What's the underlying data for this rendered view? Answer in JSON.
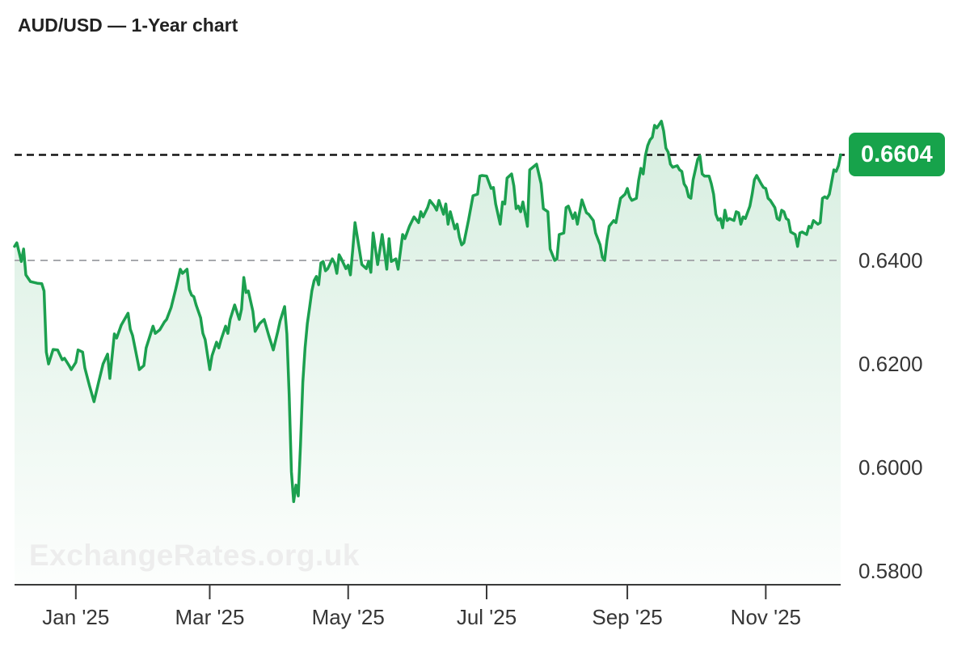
{
  "title": "AUD/USD — 1-Year chart",
  "watermark": "ExchangeRates.org.uk",
  "badge": {
    "value": "0.6604"
  },
  "colors": {
    "line_green": "#1ca04f",
    "badge_green": "#17a34b",
    "fill_green_top": "rgba(28,160,79,0.18)",
    "fill_green_bottom": "rgba(28,160,79,0)",
    "current_dash": "#141414",
    "reference_dash": "#a7a9ad",
    "axis": "#3a3a3a",
    "label_text": "#363636",
    "watermark_text": "#ededed"
  },
  "chart_data": {
    "type": "line",
    "title": "AUD/USD — 1-Year chart",
    "pair": "AUD/USD",
    "period": "1-Year",
    "current_rate": 0.6604,
    "reference_line": 0.64,
    "ylim": [
      0.578,
      0.668
    ],
    "x_range_days": 364,
    "grid": "off",
    "legend": "none",
    "y_ticks": [
      {
        "value": 0.64,
        "label": "0.6400"
      },
      {
        "value": 0.62,
        "label": "0.6200"
      },
      {
        "value": 0.6,
        "label": "0.6000"
      },
      {
        "value": 0.58,
        "label": "0.5800"
      }
    ],
    "x_ticks": [
      {
        "label": "Jan '25",
        "day": 27
      },
      {
        "label": "Mar '25",
        "day": 86
      },
      {
        "label": "May '25",
        "day": 147
      },
      {
        "label": "Jul '25",
        "day": 208
      },
      {
        "label": "Sep '25",
        "day": 270
      },
      {
        "label": "Nov '25",
        "day": 331
      }
    ],
    "points": [
      [
        0,
        0.6427
      ],
      [
        1,
        0.6434
      ],
      [
        3,
        0.6398
      ],
      [
        4,
        0.6422
      ],
      [
        5,
        0.6372
      ],
      [
        7,
        0.6359
      ],
      [
        10,
        0.6356
      ],
      [
        12,
        0.6355
      ],
      [
        13,
        0.6341
      ],
      [
        14,
        0.6223
      ],
      [
        15,
        0.62
      ],
      [
        17,
        0.6228
      ],
      [
        19,
        0.6227
      ],
      [
        21,
        0.6208
      ],
      [
        22,
        0.6211
      ],
      [
        24,
        0.6197
      ],
      [
        25,
        0.6189
      ],
      [
        27,
        0.6203
      ],
      [
        28,
        0.6227
      ],
      [
        30,
        0.6223
      ],
      [
        31,
        0.6192
      ],
      [
        33,
        0.6158
      ],
      [
        35,
        0.6127
      ],
      [
        37,
        0.6164
      ],
      [
        39,
        0.62
      ],
      [
        41,
        0.6219
      ],
      [
        42,
        0.6172
      ],
      [
        44,
        0.6258
      ],
      [
        45,
        0.625
      ],
      [
        47,
        0.6275
      ],
      [
        50,
        0.6298
      ],
      [
        51,
        0.6267
      ],
      [
        52,
        0.6255
      ],
      [
        55,
        0.6189
      ],
      [
        57,
        0.6197
      ],
      [
        58,
        0.6231
      ],
      [
        61,
        0.6273
      ],
      [
        62,
        0.6259
      ],
      [
        64,
        0.6266
      ],
      [
        66,
        0.6281
      ],
      [
        67,
        0.6286
      ],
      [
        69,
        0.6309
      ],
      [
        71,
        0.6344
      ],
      [
        73,
        0.6383
      ],
      [
        74,
        0.6375
      ],
      [
        76,
        0.6383
      ],
      [
        77,
        0.6344
      ],
      [
        78,
        0.6333
      ],
      [
        79,
        0.633
      ],
      [
        80,
        0.6314
      ],
      [
        82,
        0.6289
      ],
      [
        83,
        0.6259
      ],
      [
        84,
        0.6247
      ],
      [
        86,
        0.6189
      ],
      [
        87,
        0.6216
      ],
      [
        89,
        0.6242
      ],
      [
        90,
        0.6231
      ],
      [
        91,
        0.6247
      ],
      [
        93,
        0.6273
      ],
      [
        94,
        0.6259
      ],
      [
        95,
        0.6286
      ],
      [
        97,
        0.6314
      ],
      [
        99,
        0.6286
      ],
      [
        100,
        0.6306
      ],
      [
        101,
        0.6367
      ],
      [
        102,
        0.6338
      ],
      [
        103,
        0.6341
      ],
      [
        105,
        0.6302
      ],
      [
        106,
        0.6263
      ],
      [
        108,
        0.6278
      ],
      [
        110,
        0.6286
      ],
      [
        112,
        0.6255
      ],
      [
        114,
        0.6227
      ],
      [
        116,
        0.6263
      ],
      [
        117,
        0.6283
      ],
      [
        119,
        0.6311
      ],
      [
        120,
        0.6258
      ],
      [
        121,
        0.6142
      ],
      [
        122,
        0.5992
      ],
      [
        123,
        0.5934
      ],
      [
        124,
        0.5966
      ],
      [
        125,
        0.5945
      ],
      [
        126,
        0.6045
      ],
      [
        127,
        0.6164
      ],
      [
        128,
        0.6231
      ],
      [
        129,
        0.6278
      ],
      [
        130,
        0.6309
      ],
      [
        131,
        0.6341
      ],
      [
        132,
        0.6361
      ],
      [
        133,
        0.6369
      ],
      [
        134,
        0.6353
      ],
      [
        135,
        0.6395
      ],
      [
        136,
        0.6398
      ],
      [
        137,
        0.638
      ],
      [
        138,
        0.6384
      ],
      [
        140,
        0.6403
      ],
      [
        141,
        0.6395
      ],
      [
        142,
        0.6375
      ],
      [
        143,
        0.6411
      ],
      [
        144,
        0.6403
      ],
      [
        146,
        0.6384
      ],
      [
        147,
        0.6391
      ],
      [
        148,
        0.6372
      ],
      [
        149,
        0.6419
      ],
      [
        150,
        0.6473
      ],
      [
        153,
        0.6392
      ],
      [
        155,
        0.6384
      ],
      [
        156,
        0.6398
      ],
      [
        157,
        0.6377
      ],
      [
        158,
        0.6453
      ],
      [
        160,
        0.6392
      ],
      [
        162,
        0.645
      ],
      [
        164,
        0.6383
      ],
      [
        165,
        0.6442
      ],
      [
        166,
        0.6398
      ],
      [
        168,
        0.6403
      ],
      [
        169,
        0.6383
      ],
      [
        171,
        0.645
      ],
      [
        172,
        0.6442
      ],
      [
        174,
        0.6466
      ],
      [
        176,
        0.6484
      ],
      [
        178,
        0.6473
      ],
      [
        179,
        0.6494
      ],
      [
        180,
        0.6484
      ],
      [
        182,
        0.6502
      ],
      [
        183,
        0.6516
      ],
      [
        185,
        0.6505
      ],
      [
        186,
        0.6497
      ],
      [
        187,
        0.6516
      ],
      [
        189,
        0.6489
      ],
      [
        190,
        0.6509
      ],
      [
        191,
        0.647
      ],
      [
        192,
        0.6494
      ],
      [
        194,
        0.6461
      ],
      [
        195,
        0.647
      ],
      [
        196,
        0.6445
      ],
      [
        197,
        0.643
      ],
      [
        198,
        0.6434
      ],
      [
        200,
        0.6477
      ],
      [
        202,
        0.6525
      ],
      [
        204,
        0.6528
      ],
      [
        205,
        0.6563
      ],
      [
        206,
        0.6564
      ],
      [
        208,
        0.6563
      ],
      [
        210,
        0.6539
      ],
      [
        211,
        0.6541
      ],
      [
        212,
        0.6509
      ],
      [
        214,
        0.647
      ],
      [
        215,
        0.6513
      ],
      [
        216,
        0.6509
      ],
      [
        217,
        0.6559
      ],
      [
        219,
        0.6567
      ],
      [
        220,
        0.6544
      ],
      [
        221,
        0.65
      ],
      [
        222,
        0.6505
      ],
      [
        223,
        0.6494
      ],
      [
        224,
        0.6513
      ],
      [
        226,
        0.6466
      ],
      [
        227,
        0.6575
      ],
      [
        230,
        0.6586
      ],
      [
        232,
        0.6548
      ],
      [
        233,
        0.65
      ],
      [
        235,
        0.6494
      ],
      [
        236,
        0.6422
      ],
      [
        238,
        0.64
      ],
      [
        239,
        0.6403
      ],
      [
        240,
        0.645
      ],
      [
        242,
        0.6453
      ],
      [
        243,
        0.6502
      ],
      [
        244,
        0.6505
      ],
      [
        246,
        0.6481
      ],
      [
        247,
        0.6492
      ],
      [
        248,
        0.647
      ],
      [
        250,
        0.6517
      ],
      [
        252,
        0.6492
      ],
      [
        253,
        0.6489
      ],
      [
        255,
        0.6477
      ],
      [
        256,
        0.6453
      ],
      [
        258,
        0.643
      ],
      [
        259,
        0.6406
      ],
      [
        260,
        0.64
      ],
      [
        261,
        0.6438
      ],
      [
        262,
        0.6466
      ],
      [
        264,
        0.6477
      ],
      [
        265,
        0.6473
      ],
      [
        266,
        0.6497
      ],
      [
        267,
        0.652
      ],
      [
        269,
        0.6528
      ],
      [
        270,
        0.6539
      ],
      [
        271,
        0.6523
      ],
      [
        272,
        0.6516
      ],
      [
        274,
        0.652
      ],
      [
        275,
        0.6555
      ],
      [
        276,
        0.6578
      ],
      [
        277,
        0.6567
      ],
      [
        278,
        0.6603
      ],
      [
        279,
        0.6622
      ],
      [
        280,
        0.6633
      ],
      [
        281,
        0.6638
      ],
      [
        282,
        0.6661
      ],
      [
        283,
        0.6656
      ],
      [
        285,
        0.6669
      ],
      [
        286,
        0.665
      ],
      [
        287,
        0.6617
      ],
      [
        288,
        0.6609
      ],
      [
        289,
        0.6586
      ],
      [
        290,
        0.658
      ],
      [
        292,
        0.6583
      ],
      [
        293,
        0.6575
      ],
      [
        294,
        0.6572
      ],
      [
        295,
        0.6548
      ],
      [
        296,
        0.6541
      ],
      [
        297,
        0.6523
      ],
      [
        298,
        0.652
      ],
      [
        299,
        0.6556
      ],
      [
        301,
        0.6595
      ],
      [
        302,
        0.6602
      ],
      [
        303,
        0.6567
      ],
      [
        304,
        0.6563
      ],
      [
        306,
        0.6563
      ],
      [
        307,
        0.6548
      ],
      [
        308,
        0.6528
      ],
      [
        309,
        0.6489
      ],
      [
        310,
        0.6478
      ],
      [
        311,
        0.6481
      ],
      [
        312,
        0.6463
      ],
      [
        313,
        0.6497
      ],
      [
        314,
        0.6477
      ],
      [
        315,
        0.6481
      ],
      [
        317,
        0.6477
      ],
      [
        318,
        0.6494
      ],
      [
        319,
        0.6492
      ],
      [
        320,
        0.647
      ],
      [
        321,
        0.6484
      ],
      [
        322,
        0.6481
      ],
      [
        324,
        0.6505
      ],
      [
        325,
        0.6528
      ],
      [
        326,
        0.6556
      ],
      [
        327,
        0.6564
      ],
      [
        329,
        0.6548
      ],
      [
        330,
        0.6541
      ],
      [
        331,
        0.6539
      ],
      [
        332,
        0.652
      ],
      [
        333,
        0.6516
      ],
      [
        335,
        0.6502
      ],
      [
        336,
        0.6481
      ],
      [
        337,
        0.6478
      ],
      [
        338,
        0.6497
      ],
      [
        339,
        0.6494
      ],
      [
        340,
        0.6481
      ],
      [
        341,
        0.6478
      ],
      [
        342,
        0.6455
      ],
      [
        344,
        0.645
      ],
      [
        345,
        0.6427
      ],
      [
        346,
        0.6453
      ],
      [
        347,
        0.6455
      ],
      [
        349,
        0.645
      ],
      [
        350,
        0.6466
      ],
      [
        351,
        0.6463
      ],
      [
        352,
        0.6477
      ],
      [
        354,
        0.647
      ],
      [
        355,
        0.6473
      ],
      [
        356,
        0.652
      ],
      [
        357,
        0.6523
      ],
      [
        358,
        0.652
      ],
      [
        359,
        0.6528
      ],
      [
        361,
        0.6575
      ],
      [
        362,
        0.6572
      ],
      [
        363,
        0.6583
      ],
      [
        364,
        0.6604
      ]
    ]
  }
}
